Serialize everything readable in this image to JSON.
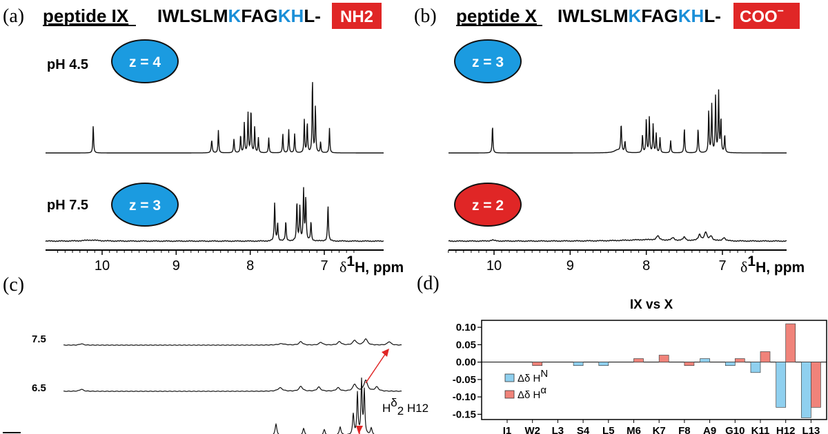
{
  "panel_a": {
    "letter": "(a)",
    "title": "peptide IX",
    "sequence_parts": [
      "IWLSLM",
      "K",
      "FAG",
      "KH",
      "L-"
    ],
    "terminus": "NH2",
    "rows": [
      {
        "ph": "pH 4.5",
        "charge": "z = 4",
        "badge_color": "#1b9be0"
      },
      {
        "ph": "pH 7.5",
        "charge": "z = 3",
        "badge_color": "#1b9be0"
      }
    ]
  },
  "panel_b": {
    "letter": "(b)",
    "title": "peptide X",
    "sequence_parts": [
      "IWLSLM",
      "K",
      "FAG",
      "KH",
      "L-"
    ],
    "terminus": "COO",
    "terminus_sup": "−",
    "rows": [
      {
        "charge": "z = 3",
        "badge_color": "#1b9be0"
      },
      {
        "charge": "z = 2",
        "badge_color": "#e02626"
      }
    ]
  },
  "axis_ticks": [
    "10",
    "9",
    "8",
    "7"
  ],
  "axis_label": {
    "delta": "δ",
    "sup": "1",
    "rest": "H, ppm"
  },
  "panel_c": {
    "letter": "(c)",
    "traces": [
      "7.5",
      "6.5"
    ],
    "annotation": {
      "h": "H",
      "sup": "δ",
      "sub": "2",
      "rest": " H12"
    }
  },
  "chart_data": {
    "type": "bar",
    "letter": "(d)",
    "title": "IX vs X",
    "categories": [
      "I1",
      "W2",
      "L3",
      "S4",
      "L5",
      "M6",
      "K7",
      "F8",
      "A9",
      "G10",
      "K11",
      "H12",
      "L13"
    ],
    "series": [
      {
        "name": "Δδ H^N",
        "label": "Δδ H",
        "sup": "N",
        "color": "#8fd0ef",
        "values": [
          0,
          0,
          0,
          -0.01,
          -0.01,
          0,
          0,
          0,
          0.01,
          -0.01,
          -0.03,
          -0.13,
          -0.16
        ]
      },
      {
        "name": "Δδ H^α",
        "label": "Δδ H",
        "sup": "α",
        "color": "#f0837a",
        "values": [
          0,
          -0.01,
          0,
          0,
          0,
          0.01,
          0.02,
          -0.01,
          0,
          0.01,
          0.03,
          0.11,
          -0.13
        ]
      }
    ],
    "ylim": [
      -0.165,
      0.12
    ],
    "yticks": [
      "0.10",
      "0.05",
      "0.00",
      "-0.05",
      "-0.10",
      "-0.15"
    ],
    "ytick_values": [
      0.1,
      0.05,
      0.0,
      -0.05,
      -0.1,
      -0.15
    ],
    "legend_position": "lower-left",
    "xlabel": "",
    "ylabel": ""
  }
}
